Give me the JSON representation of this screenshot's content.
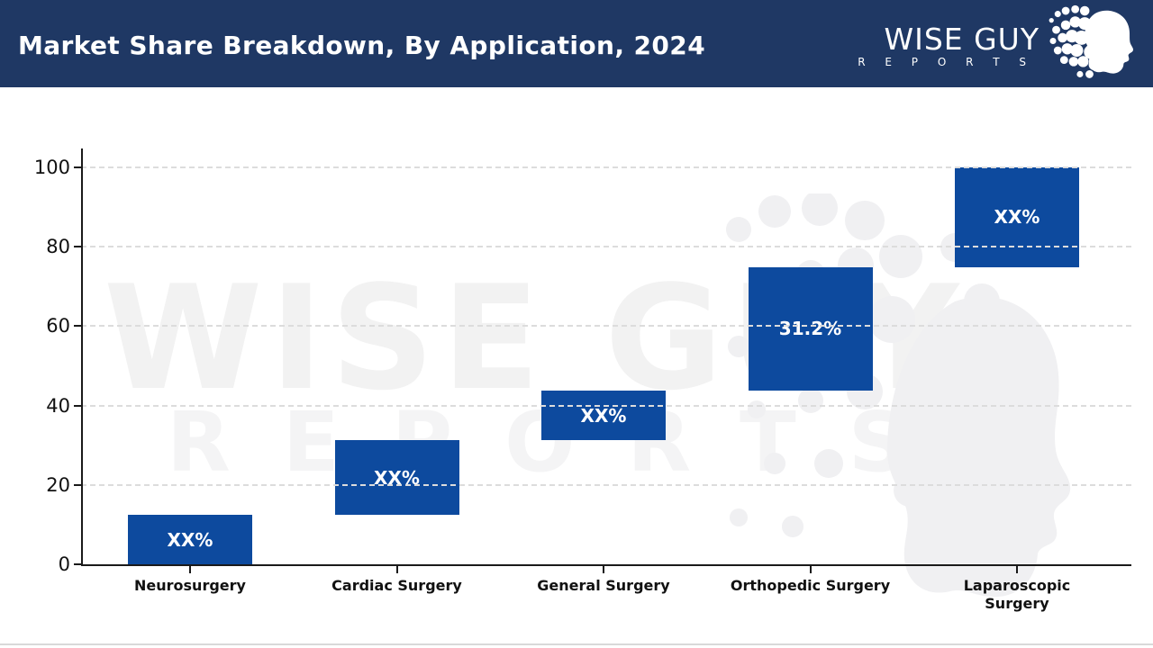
{
  "header": {
    "title": "Market Share Breakdown, By Application, 2024",
    "bg_color": "#1f3864",
    "logo": {
      "line1": "WISE GUY",
      "line2": "R E P O R T S"
    }
  },
  "watermark": {
    "line1": "WISE GUY",
    "line2": "REPORTS"
  },
  "chart_data": {
    "type": "bar",
    "subtype": "waterfall",
    "title": "Market Share Breakdown, By Application, 2024",
    "categories": [
      "Neurosurgery",
      "Cardiac Surgery",
      "General Surgery",
      "Orthopedic Surgery",
      "Laparoscopic Surgery"
    ],
    "segments": [
      {
        "category": "Neurosurgery",
        "start": 0,
        "end": 12.4,
        "label": "XX%"
      },
      {
        "category": "Cardiac Surgery",
        "start": 12.4,
        "end": 31.2,
        "label": "XX%"
      },
      {
        "category": "General Surgery",
        "start": 31.2,
        "end": 43.7,
        "label": "XX%"
      },
      {
        "category": "Orthopedic Surgery",
        "start": 43.7,
        "end": 74.9,
        "label": "31.2%"
      },
      {
        "category": "Laparoscopic Surgery",
        "start": 74.9,
        "end": 100,
        "label": "XX%"
      }
    ],
    "ylim": [
      0,
      100
    ],
    "yticks": [
      0,
      20,
      40,
      60,
      80,
      100
    ],
    "xlabel": "",
    "ylabel": "",
    "grid": "horizontal-dashed",
    "legend": "none",
    "bar_color": "#0d4a9e",
    "bar_label_color": "#ffffff",
    "gridline_color": "#dcdcdc",
    "axis_color": "#1a1a1a"
  }
}
